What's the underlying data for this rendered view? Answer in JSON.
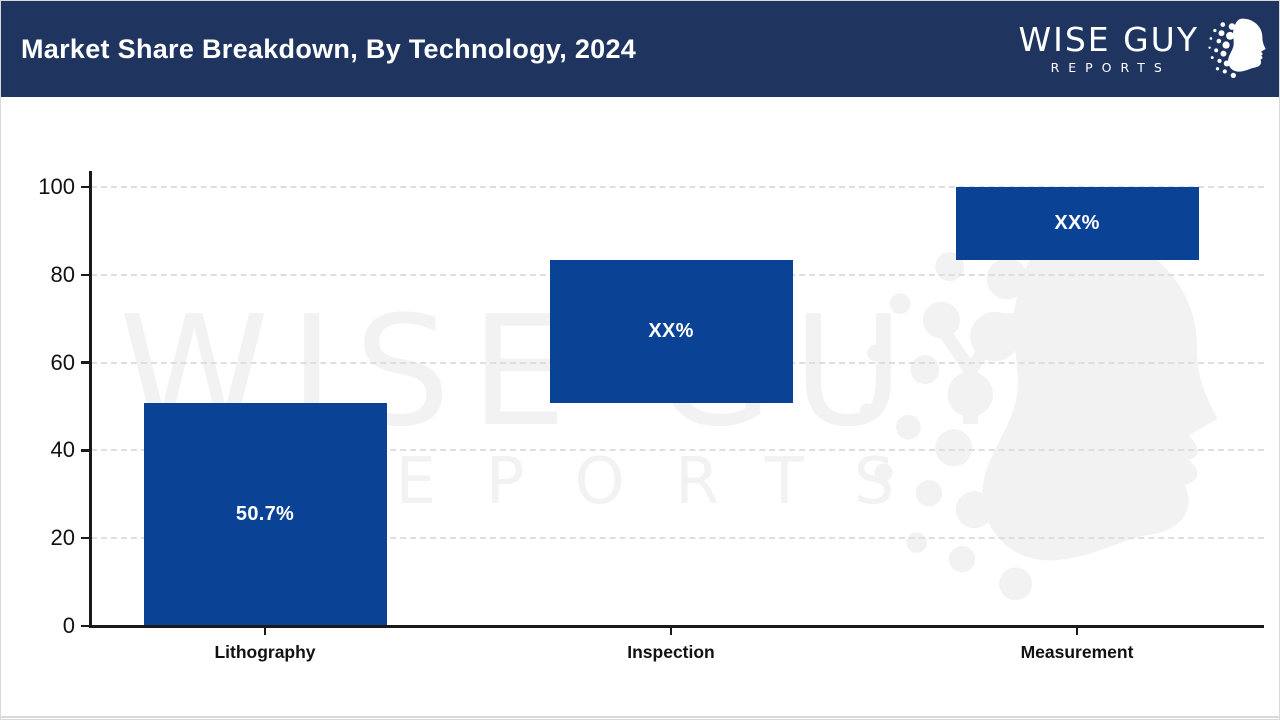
{
  "header": {
    "title": "Market Share Breakdown, By Technology, 2024",
    "brand": {
      "name": "WISE GUY",
      "subtitle": "REPORTS"
    }
  },
  "watermark": {
    "name": "WISE GUY",
    "subtitle": "REPORTS"
  },
  "chart_data": {
    "type": "waterfall",
    "title": "Market Share Breakdown, By Technology, 2024",
    "categories": [
      "Lithography",
      "Inspection",
      "Measurement"
    ],
    "segments": [
      {
        "category": "Lithography",
        "start": 0,
        "end": 50.7,
        "label": "50.7%"
      },
      {
        "category": "Inspection",
        "start": 50.7,
        "end": 83.4,
        "label": "XX%"
      },
      {
        "category": "Measurement",
        "start": 83.4,
        "end": 100,
        "label": "XX%"
      }
    ],
    "ylim": [
      0,
      100
    ],
    "yticks": [
      0,
      20,
      40,
      60,
      80,
      100
    ],
    "grid": "horizontal-dashed",
    "bar_color": "#0a4296",
    "bar_label_color": "#ffffff",
    "header_color": "#1f3560",
    "watermark_color": "#f2f2f2"
  }
}
